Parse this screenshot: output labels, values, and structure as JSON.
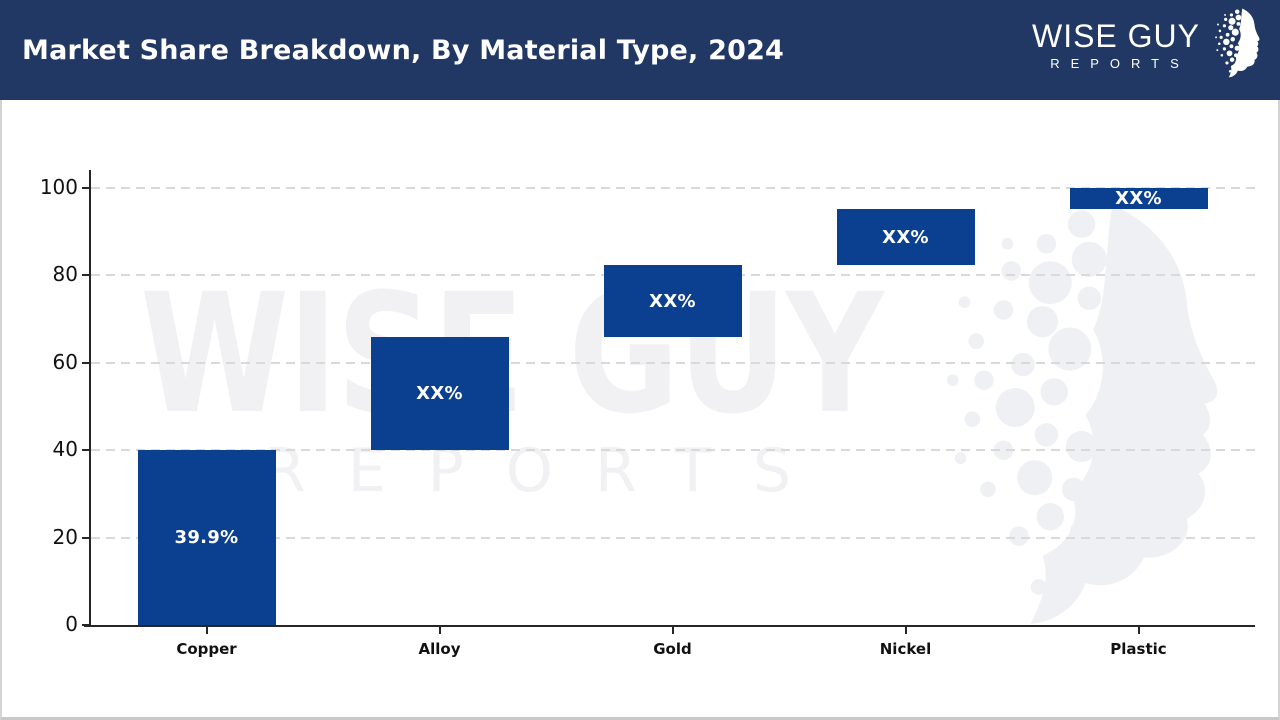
{
  "header": {
    "title": "Market Share Breakdown, By Material Type, 2024",
    "logo": {
      "line1": "WISE GUY",
      "line2": "REPORTS",
      "icon": "dotted-head-profile-icon"
    }
  },
  "watermark": {
    "line1": "WISE GUY",
    "line2": "REPORTS"
  },
  "colors": {
    "header_bg": "#203863",
    "bar": "#0b3f90",
    "bar_label_text": "#ffffff",
    "axis": "#262626",
    "gridline": "#d9d9d9",
    "tick_text": "#111111",
    "watermark": "#f1f1f4"
  },
  "chart_data": {
    "type": "bar",
    "subtype": "waterfall",
    "title": "Market Share Breakdown, By Material Type, 2024",
    "categories": [
      "Copper",
      "Alloy",
      "Gold",
      "Nickel",
      "Plastic"
    ],
    "segments": [
      {
        "category": "Copper",
        "start": 0,
        "end": 39.9,
        "label": "39.9%"
      },
      {
        "category": "Alloy",
        "start": 39.9,
        "end": 65.8,
        "label": "XX%"
      },
      {
        "category": "Gold",
        "start": 65.8,
        "end": 82.2,
        "label": "XX%"
      },
      {
        "category": "Nickel",
        "start": 82.2,
        "end": 95.1,
        "label": "XX%"
      },
      {
        "category": "Plastic",
        "start": 95.1,
        "end": 100,
        "label": "XX%"
      }
    ],
    "yticks": [
      0,
      20,
      40,
      60,
      80,
      100
    ],
    "ylim": [
      0,
      105
    ],
    "xlabel": "",
    "ylabel": "",
    "grid": "dashed-horizontal",
    "legend": "none"
  }
}
